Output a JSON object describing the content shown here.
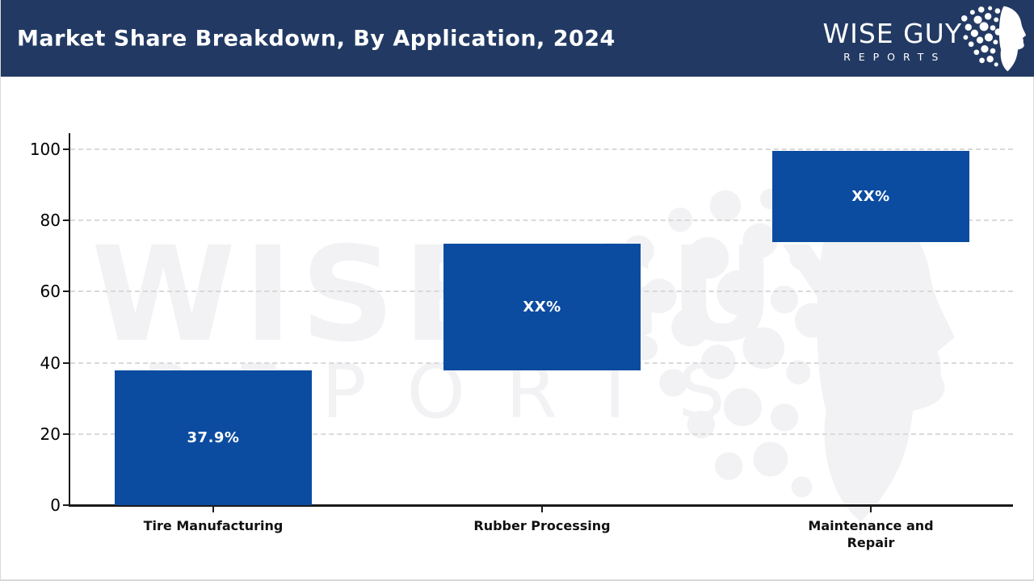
{
  "header": {
    "title": "Market Share Breakdown, By Application, 2024",
    "logo": {
      "line1": "WISE GUY",
      "line2": "REPORTS"
    }
  },
  "watermark": {
    "line1": "WISE GUY",
    "line2": "REPORTS"
  },
  "colors": {
    "header_bg": "#223A63",
    "bar": "#0B4CA0",
    "bar_label": "#FFFFFF",
    "gridline": "#D9D9D9",
    "axis": "#1A1A1A",
    "watermark": "#F2F2F4"
  },
  "chart_data": {
    "type": "bar",
    "subtype": "waterfall",
    "title": "Market Share Breakdown, By Application, 2024",
    "categories": [
      "Tire Manufacturing",
      "Rubber Processing",
      "Maintenance and Repair"
    ],
    "category_lines": [
      [
        "Tire Manufacturing"
      ],
      [
        "Rubber Processing"
      ],
      [
        "Maintenance and",
        "Repair"
      ]
    ],
    "segments": [
      {
        "category": "Tire Manufacturing",
        "start": 0,
        "end": 37.9,
        "label": "37.9%"
      },
      {
        "category": "Rubber Processing",
        "start": 37.9,
        "end": 73.5,
        "label": "XX%"
      },
      {
        "category": "Maintenance and Repair",
        "start": 74,
        "end": 99.5,
        "label": "XX%"
      }
    ],
    "ylim": [
      0,
      100
    ],
    "yticks": [
      0,
      20,
      40,
      60,
      80,
      100
    ],
    "grid": "dashed-horizontal",
    "legend": "none",
    "bar_color": "#0B4CA0",
    "value_label_color": "#FFFFFF"
  }
}
